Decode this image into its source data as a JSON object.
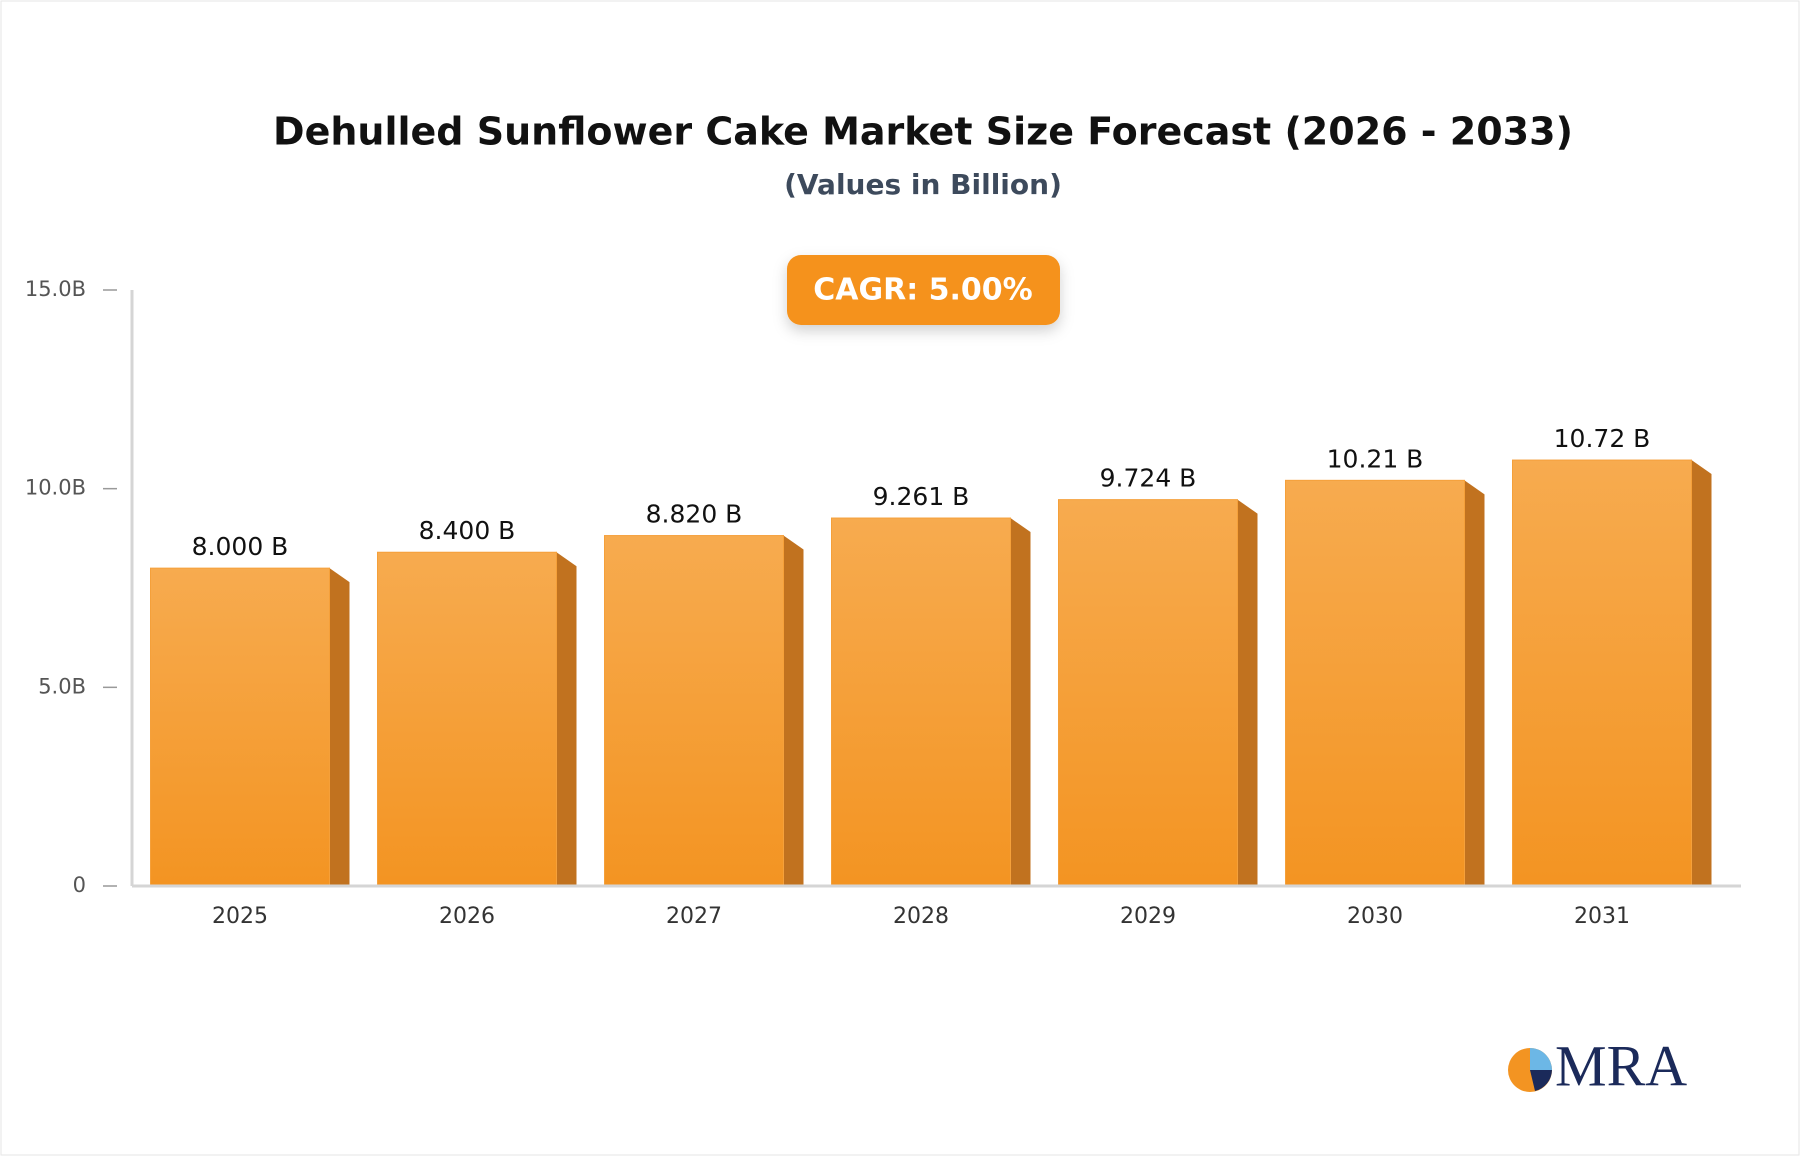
{
  "chart_data": {
    "type": "bar",
    "title": "Dehulled Sunflower Cake Market Size Forecast (2026 - 2033)",
    "subtitle": "(Values in Billion)",
    "annotation": "CAGR: 5.00%",
    "logo": "MRA",
    "categories": [
      "2025",
      "2026",
      "2027",
      "2028",
      "2029",
      "2030",
      "2031"
    ],
    "values": [
      8.0,
      8.4,
      8.82,
      9.261,
      9.724,
      10.21,
      10.72
    ],
    "value_labels": [
      "8.000 B",
      "8.400 B",
      "8.820 B",
      "9.261 B",
      "9.724 B",
      "10.21 B",
      "10.72 B"
    ],
    "color": "#f5a03a",
    "ylim": [
      0,
      15
    ],
    "yticks": [
      0,
      {
        "value": 5,
        "label": "5.0B"
      },
      {
        "value": 10,
        "label": "10.0B"
      },
      {
        "value": 15,
        "label": "15.0B"
      }
    ],
    "grid": false
  }
}
